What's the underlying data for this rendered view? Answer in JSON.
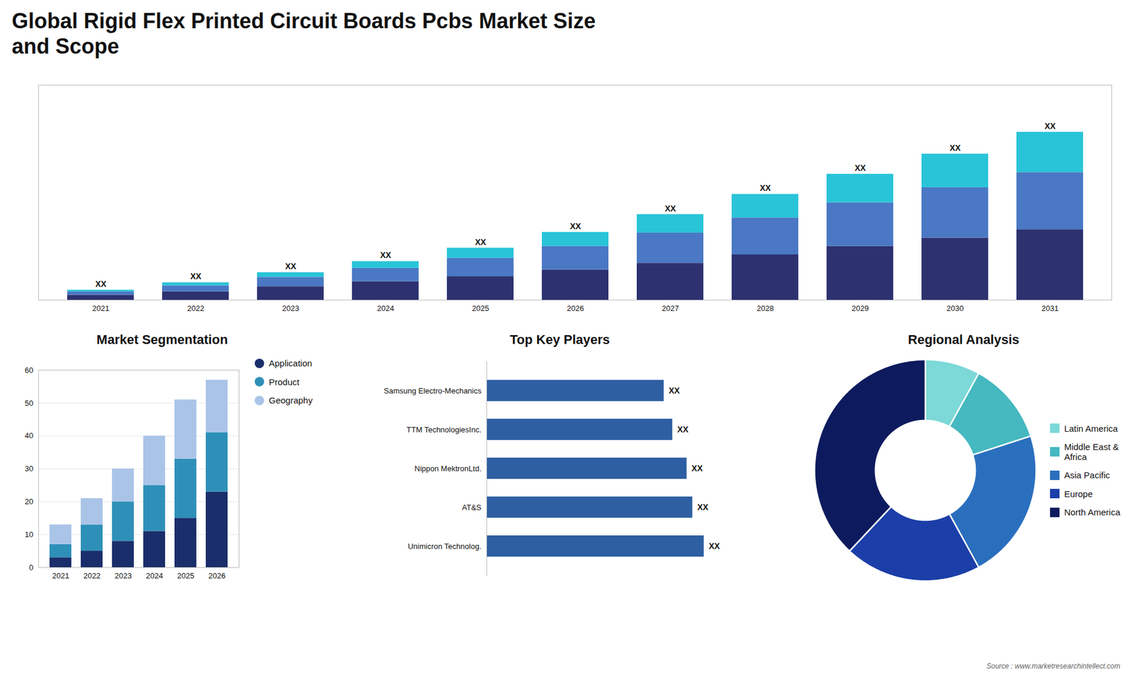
{
  "title": "Global Rigid Flex Printed Circuit Boards Pcbs Market Size\nand Scope",
  "annotations": [
    "Source : www.marketresearchintellect.com"
  ],
  "chart_data": [
    {
      "type": "bar",
      "stacked": true,
      "categories": [
        "2021",
        "2022",
        "2023",
        "2024",
        "2025",
        "2026",
        "2027",
        "2028",
        "2029",
        "2030",
        "2031"
      ],
      "series": [
        {
          "color": "#2d3170",
          "values": [
            1.5,
            2.5,
            4.0,
            5.5,
            7.0,
            9.0,
            11.0,
            13.5,
            16.0,
            18.5,
            21.0
          ]
        },
        {
          "color": "#4a78c4",
          "values": [
            1.0,
            1.8,
            2.8,
            4.0,
            5.5,
            7.0,
            9.0,
            11.0,
            13.0,
            15.0,
            17.0
          ]
        },
        {
          "color": "#29c4d8",
          "values": [
            0.5,
            0.9,
            1.4,
            2.0,
            3.0,
            4.2,
            5.5,
            7.0,
            8.5,
            10.0,
            12.0
          ]
        }
      ],
      "ylim": [
        0,
        64
      ],
      "tick_labels": "x",
      "data_labels": true,
      "value_labels": [
        "XX",
        "XX",
        "XX",
        "XX",
        "XX",
        "XX",
        "XX",
        "XX",
        "XX",
        "XX",
        "XX"
      ]
    },
    {
      "type": "bar",
      "title": "Market Segmentation",
      "stacked": true,
      "categories": [
        "2021",
        "2022",
        "2023",
        "2024",
        "2025",
        "2026"
      ],
      "series": [
        {
          "name": "Application",
          "color": "#1a2e6b",
          "values": [
            3,
            5,
            8,
            11,
            15,
            23
          ]
        },
        {
          "name": "Product",
          "color": "#2e90b8",
          "values": [
            4,
            8,
            12,
            14,
            18,
            18
          ]
        },
        {
          "name": "Geography",
          "color": "#aac4e8",
          "values": [
            6,
            8,
            10,
            15,
            18,
            16
          ]
        }
      ],
      "ylim": [
        0,
        60
      ],
      "yticks": [
        0,
        10,
        20,
        30,
        40,
        50,
        60
      ],
      "grid": true,
      "legend": "right"
    },
    {
      "type": "bar",
      "title": "Top Key Players",
      "orientation": "horizontal",
      "categories": [
        "Unimicron Technolog.",
        "AT&S",
        "Nippon MektronLtd.",
        "TTM TechnologiesInc.",
        "Samsung Electro-Mechanics"
      ],
      "values": [
        76,
        72,
        70,
        65,
        62
      ],
      "color": "#2e5fa3",
      "xlim": [
        0,
        89.68
      ],
      "tick_labels": "y",
      "data_labels": true,
      "value_labels": [
        "XX",
        "XX",
        "XX",
        "XX",
        "XX"
      ]
    },
    {
      "type": "pie",
      "title": "Regional Analysis",
      "categories": [
        "Latin America",
        "Middle East &\nAfrica",
        "Asia Pacific",
        "Europe",
        "North America"
      ],
      "values": [
        8,
        12,
        22,
        20,
        38
      ],
      "colors": [
        "#7dd8d8",
        "#45b8c0",
        "#2a6fbe",
        "#1b3ea8",
        "#0d1b5e"
      ],
      "legend": "right"
    }
  ]
}
